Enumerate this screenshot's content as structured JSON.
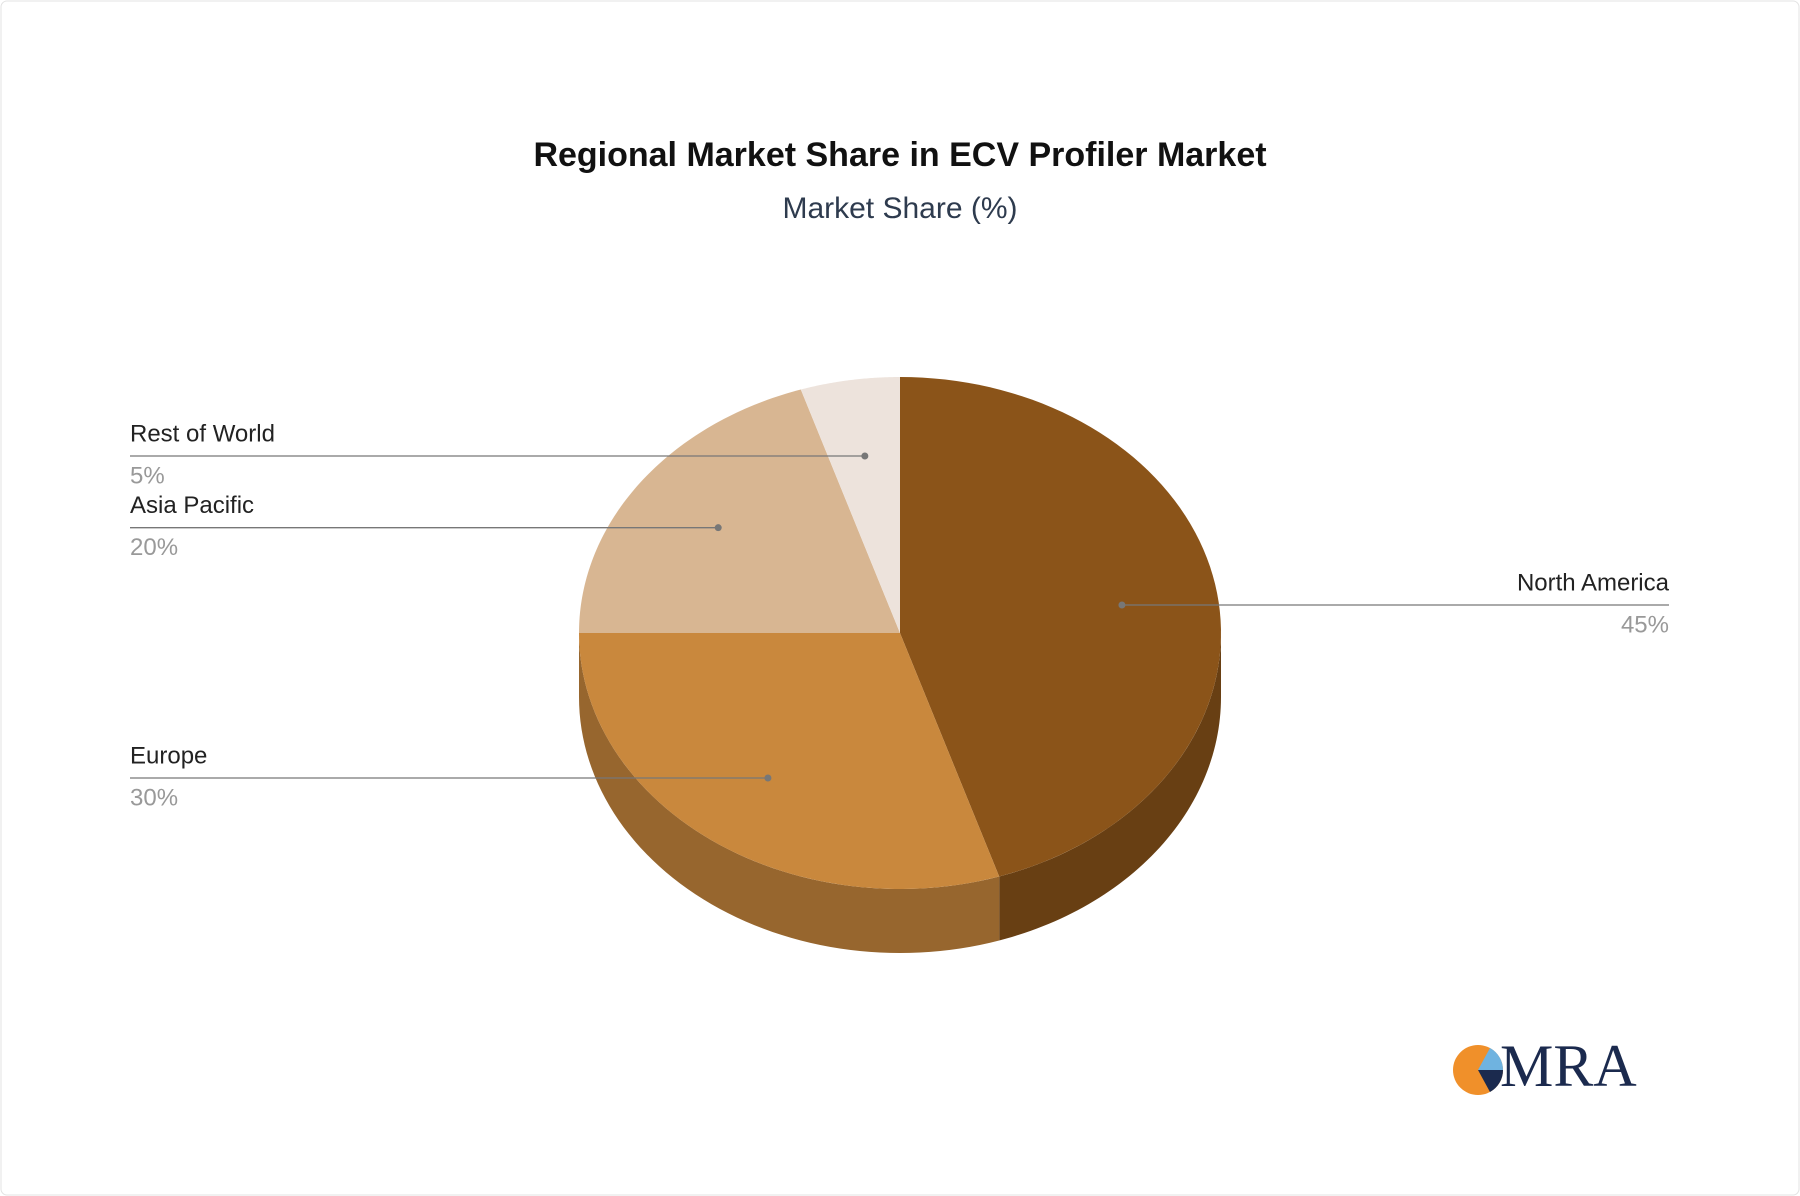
{
  "chart_data": {
    "type": "pie3d",
    "title": "Regional Market Share in ECV Profiler Market",
    "subtitle": "Market Share (%)",
    "categories": [
      "North America",
      "Europe",
      "Asia Pacific",
      "Rest of World"
    ],
    "values": [
      45,
      30,
      20,
      5
    ],
    "value_labels": [
      "45%",
      "30%",
      "20%",
      "5%"
    ],
    "colors": [
      "#8b5419",
      "#c9883d",
      "#d8b692",
      "#ede3dc"
    ]
  },
  "logo": {
    "text": "MRA"
  }
}
